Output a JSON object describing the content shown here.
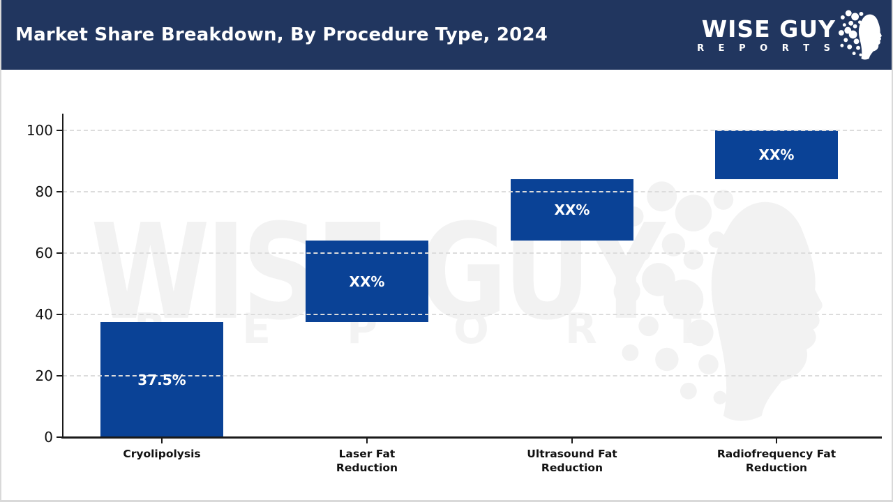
{
  "header": {
    "title": "Market Share Breakdown, By Procedure Type, 2024",
    "logo": {
      "wordmark": "WISE GUY",
      "subtext": "R E P O R T S"
    }
  },
  "watermark": {
    "wordmark": "WISE GUY",
    "subtext": "R E P O R T S"
  },
  "colors": {
    "header_bg": "#21365f",
    "bar": "#0a4296",
    "grid": "#dcdcdc",
    "axis": "#1a1a1a",
    "bar_label": "#ffffff",
    "watermark": "#f2f2f2"
  },
  "chart_data": {
    "type": "bar",
    "subtype": "waterfall",
    "title": "Market Share Breakdown, By Procedure Type, 2024",
    "xlabel": "",
    "ylabel": "",
    "ylim": [
      0,
      100
    ],
    "yticks": [
      0,
      20,
      40,
      60,
      80,
      100
    ],
    "grid": "horizontal-dashed",
    "legend": "none",
    "categories": [
      "Cryolipolysis",
      "Laser Fat\nReduction",
      "Ultrasound Fat\nReduction",
      "Radiofrequency Fat\nReduction"
    ],
    "segments": [
      {
        "category": "Cryolipolysis",
        "start": 0,
        "end": 37.5,
        "label": "37.5%"
      },
      {
        "category": "Laser Fat Reduction",
        "start": 37.5,
        "end": 64,
        "label": "XX%"
      },
      {
        "category": "Ultrasound Fat Reduction",
        "start": 64,
        "end": 84,
        "label": "XX%"
      },
      {
        "category": "Radiofrequency Fat Reduction",
        "start": 84,
        "end": 100,
        "label": "XX%"
      }
    ]
  }
}
